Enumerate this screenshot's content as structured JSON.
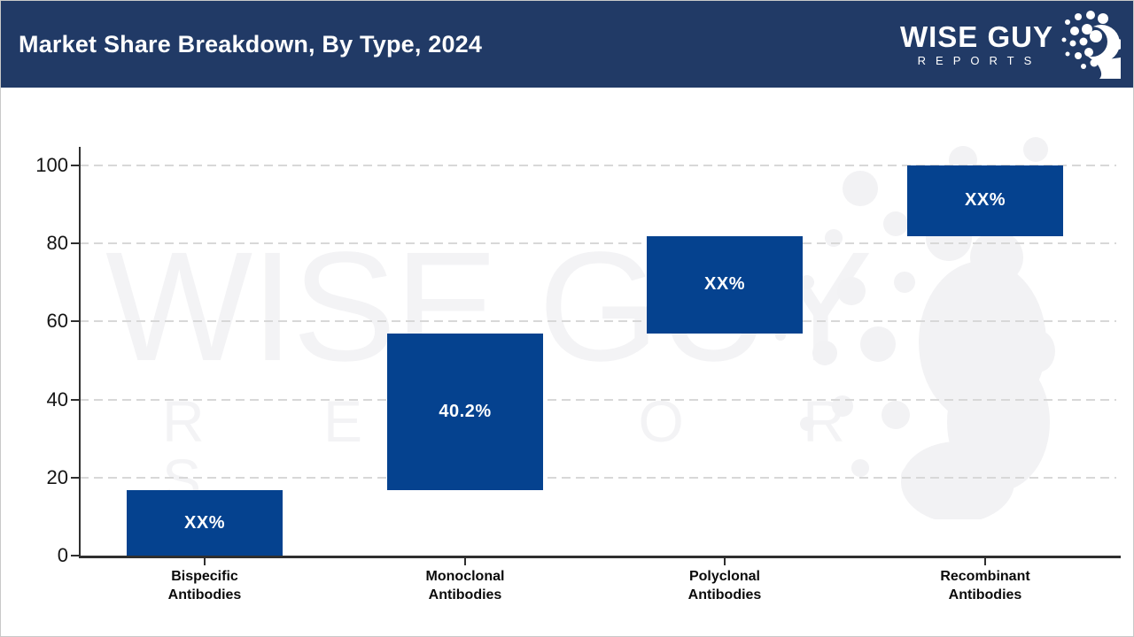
{
  "header": {
    "title": "Market Share Breakdown, By Type, 2024",
    "background": "#213a66",
    "logo": {
      "line1": "WISE GUY",
      "line2": "REPORTS"
    }
  },
  "watermark": {
    "line1": "WISE GUY",
    "line2": "R E P O R T S"
  },
  "chart_data": {
    "type": "bar",
    "subtype": "waterfall-floating-bars",
    "title": "Market Share Breakdown, By Type, 2024",
    "categories": [
      "Bispecific Antibodies",
      "Monoclonal Antibodies",
      "Polyclonal Antibodies",
      "Recombinant Antibodies"
    ],
    "bars": [
      {
        "category": "Bispecific Antibodies",
        "label": "XX%",
        "start": 0,
        "end": 16.7
      },
      {
        "category": "Monoclonal Antibodies",
        "label": "40.2%",
        "start": 16.7,
        "end": 56.9
      },
      {
        "category": "Polyclonal Antibodies",
        "label": "XX%",
        "start": 56.9,
        "end": 81.9
      },
      {
        "category": "Recombinant Antibodies",
        "label": "XX%",
        "start": 81.9,
        "end": 100
      }
    ],
    "ylim": [
      0,
      100
    ],
    "yticks": [
      0,
      20,
      40,
      60,
      80,
      100
    ],
    "xlabel": "",
    "ylabel": "",
    "grid": "horizontal-dashed",
    "legend": "none",
    "bar_color": "#05428f",
    "bar_label_color": "#ffffff",
    "axis_color": "#2f2f2f",
    "grid_color": "#d8d8d8"
  }
}
